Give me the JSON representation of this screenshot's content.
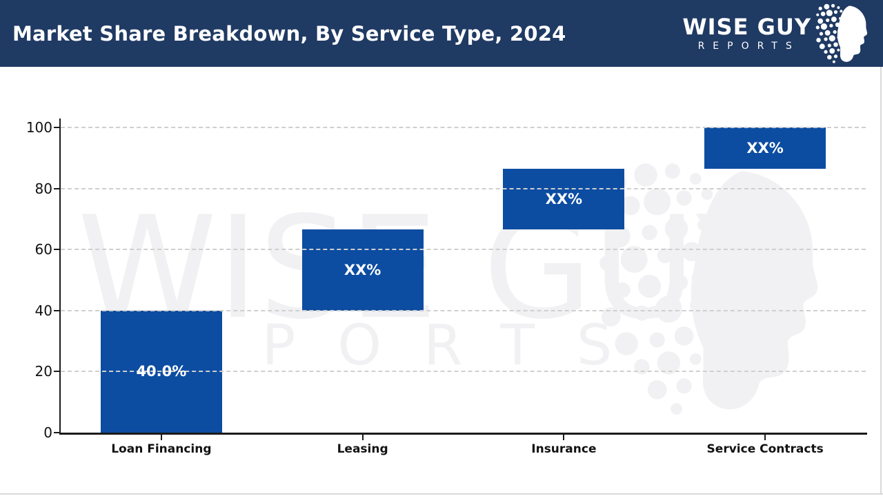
{
  "header": {
    "title": "Market Share Breakdown, By Service Type, 2024",
    "bg_color": "#1f3a63",
    "logo": {
      "line1": "WISE GUY",
      "line2": "REPORTS"
    }
  },
  "watermark": {
    "line1": "WISE GUY",
    "line2": "REPORTS"
  },
  "chart_data": {
    "type": "bar",
    "subtype": "waterfall-stacked-percentage",
    "title": "Market Share Breakdown, By Service Type, 2024",
    "categories": [
      "Loan Financing",
      "Leasing",
      "Insurance",
      "Service Contracts"
    ],
    "segments": [
      {
        "category": "Loan Financing",
        "start": 0,
        "end": 40,
        "label": "40.0%"
      },
      {
        "category": "Leasing",
        "start": 40,
        "end": 66.7,
        "label": "XX%"
      },
      {
        "category": "Insurance",
        "start": 66.7,
        "end": 86.5,
        "label": "XX%"
      },
      {
        "category": "Service Contracts",
        "start": 86.5,
        "end": 100,
        "label": "XX%"
      }
    ],
    "implied_values": [
      40.0,
      26.7,
      19.8,
      13.5
    ],
    "y_ticks": [
      0,
      20,
      40,
      60,
      80,
      100
    ],
    "ylim": [
      0,
      103
    ],
    "xlabel": "",
    "ylabel": "",
    "grid": "horizontal-dashed-on-top",
    "legend": "none",
    "bar_color": "#0c4da2",
    "bar_label_color": "#ffffff",
    "grid_color": "#cfcfcf",
    "axis_color": "#1a1a1a",
    "tick_label_color": "#111111"
  }
}
